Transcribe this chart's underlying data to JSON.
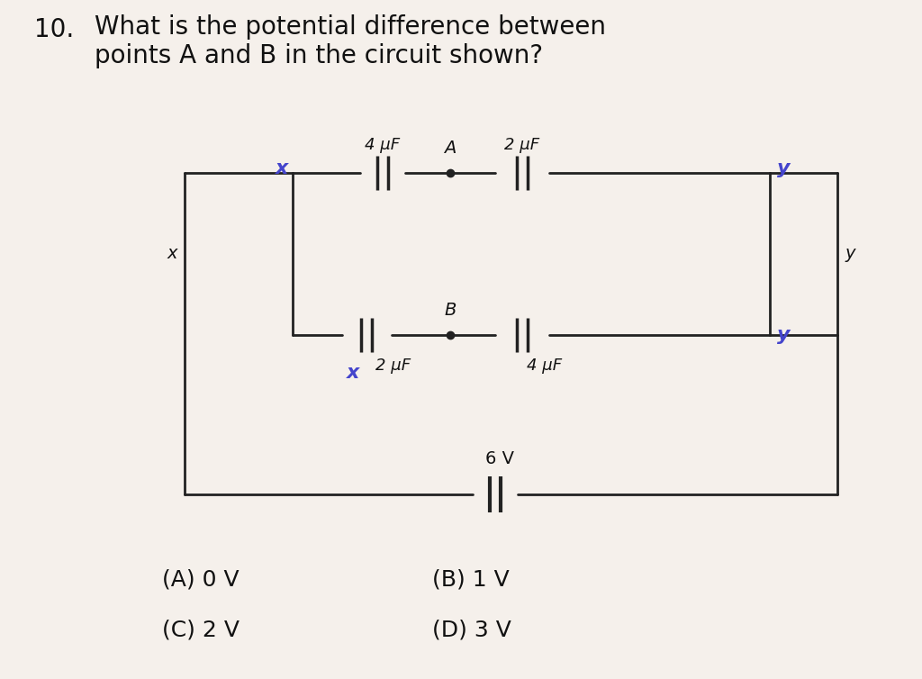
{
  "title_number": "10.",
  "title_text": "What is the potential difference between\npoints A and B in the circuit shown?",
  "title_fontsize": 20,
  "title_color": "#111111",
  "background_color": "#f5f0eb",
  "circuit_color": "#222222",
  "label_color_blue": "#4444cc",
  "label_color_black": "#111111",
  "answers": [
    "(A) 0 V",
    "(B) 1 V",
    "(C) 2 V",
    "(D) 3 V"
  ],
  "answer_fontsize": 18,
  "cap_4uF_top_label": "4 μF",
  "cap_2uF_top_label": "2 μF",
  "cap_2uF_bot_label": "2 μF",
  "cap_4uF_bot_label": "4 μF",
  "battery_label": "6 V",
  "point_A_label": "A",
  "point_B_label": "B",
  "x_label": "x",
  "y_label": "y",
  "xn_label": "x",
  "yn_label": "y",
  "xn2_label": "x",
  "yn2_label": "y"
}
